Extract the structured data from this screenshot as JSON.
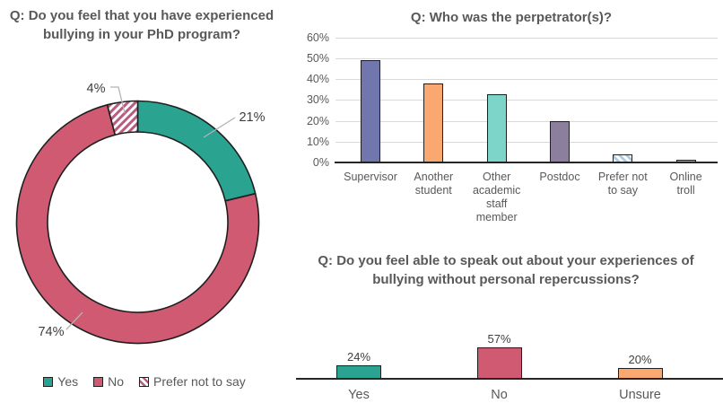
{
  "page": {
    "background": "#ffffff",
    "text_color": "#595959",
    "outline_color": "#1f1f1f",
    "gridline_color": "#d9d9d9",
    "leader_line_color": "#b3b3b3"
  },
  "donut_legend": {
    "items": [
      "Yes",
      "No",
      "Prefer not to say"
    ]
  },
  "chart_data": [
    {
      "type": "pie",
      "subtype": "donut",
      "title": "Q: Do you feel that you have experienced bullying in your PhD program?",
      "categories": [
        "Yes",
        "No",
        "Prefer not to say"
      ],
      "values": [
        21,
        74,
        4
      ],
      "data_labels": [
        "21%",
        "74%",
        "4%"
      ],
      "colors": [
        "#2aa390",
        "#d05a72",
        "hatch-pink"
      ],
      "hatch_stripe_color": "#b85c80",
      "legend_position": "bottom"
    },
    {
      "type": "bar",
      "title": "Q: Who was the perpetrator(s)?",
      "categories": [
        "Supervisor",
        "Another student",
        "Other academic staff member",
        "Postdoc",
        "Prefer not to say",
        "Online troll"
      ],
      "category_lines": [
        [
          "Supervisor"
        ],
        [
          "Another",
          "student"
        ],
        [
          "Other",
          "academic",
          "staff",
          "member"
        ],
        [
          "Postdoc"
        ],
        [
          "Prefer not",
          "to say"
        ],
        [
          "Online",
          "troll"
        ]
      ],
      "values": [
        49,
        38,
        33,
        20,
        4,
        1
      ],
      "colors": [
        "#7176ad",
        "#f9a870",
        "#7cd5c8",
        "#8c7f9e",
        "hatch-blue",
        "#a8a8a8"
      ],
      "hatch_stripe_color": "#a9cce3",
      "ytick_labels": [
        "0%",
        "10%",
        "20%",
        "30%",
        "40%",
        "50%",
        "60%"
      ],
      "ylim": [
        0,
        60
      ],
      "ytick_step": 10,
      "grid": true,
      "xlabel": "",
      "ylabel": ""
    },
    {
      "type": "bar",
      "title": "Q: Do you feel able to speak out about your experiences of bullying without personal repercussions?",
      "categories": [
        "Yes",
        "No",
        "Unsure"
      ],
      "values": [
        24,
        57,
        20
      ],
      "data_labels": [
        "24%",
        "57%",
        "20%"
      ],
      "colors": [
        "#2aa390",
        "#d05a72",
        "#f9a870"
      ],
      "grid": false,
      "xlabel": "",
      "ylabel": ""
    }
  ]
}
